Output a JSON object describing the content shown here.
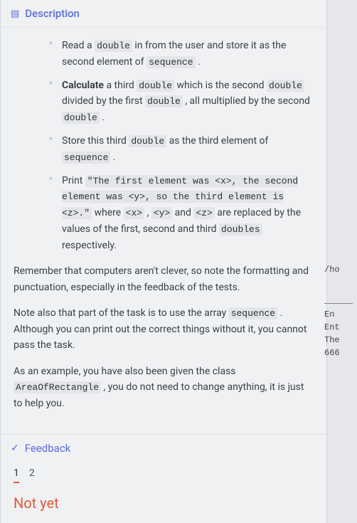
{
  "description": {
    "header": "Description",
    "bullets": [
      {
        "pre": "Read a ",
        "code1": "double",
        "mid1": " in from the user and store it as the second element of ",
        "code2": "sequence",
        "post": " ."
      },
      {
        "pre": "",
        "bold": "Calculate",
        "mid1": " a third ",
        "code1": "double",
        "mid2": " which is the second ",
        "code2": "double",
        "mid3": " divided by the first ",
        "code3": "double",
        "mid4": " , all multiplied by the second ",
        "code4": "double",
        "post": " ."
      },
      {
        "pre": "Store this third ",
        "code1": "double",
        "mid1": " as the third element of ",
        "code2": "sequence",
        "post": " ."
      },
      {
        "pre": "Print ",
        "code1": "\"The first element was <x>, the second element was <y>, so the third element is <z>.\"",
        "mid1": " where ",
        "code2": "<x>",
        "mid2": " , ",
        "code3": "<y>",
        "mid3": " and ",
        "code4": "<z>",
        "mid4": " are replaced by the values of the first, second and third ",
        "code5": "doubles",
        "post": " respectively."
      }
    ],
    "para1_pre": "Remember that computers aren't clever, so note the formatting and punctuation, especially in the feedback of the tests.",
    "para2_pre": "Note also that part of the task is to use the array ",
    "para2_code": "sequence",
    "para2_post": " . Although you can print out the correct things without it, you cannot pass the task.",
    "para3_pre": "As an example, you have also been given the class ",
    "para3_code": "AreaOfRectangle",
    "para3_post": " , you do not need to change anything, it is just to help you."
  },
  "feedback": {
    "header": "Feedback",
    "tabs": [
      "1",
      "2"
    ],
    "result": "Not yet"
  },
  "side": {
    "line1": "/ho",
    "line2": "En",
    "line3": "Ent",
    "line4": "The",
    "line5": "666"
  },
  "colors": {
    "accent": "#5b6dd8",
    "error": "#dc5a3a",
    "bg": "#f0f1f3",
    "code_bg": "#e3e5e8"
  }
}
